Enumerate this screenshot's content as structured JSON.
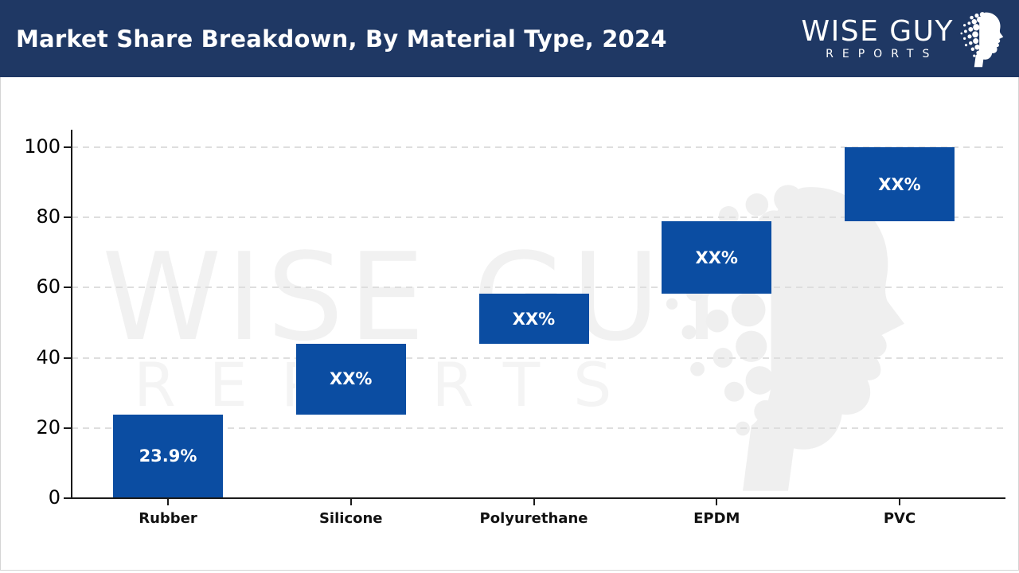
{
  "header": {
    "title": "Market Share Breakdown, By Material Type, 2024",
    "background_color": "#1f3864",
    "logo": {
      "wordmark": "WISE GUY",
      "subtext": "REPORTS"
    }
  },
  "watermark": {
    "line1": "WISE GUY",
    "line2": "REPORTS"
  },
  "chart_data": {
    "type": "bar",
    "subtype": "waterfall-floating-bars",
    "title": "Market Share Breakdown, By Material Type, 2024",
    "categories": [
      "Rubber",
      "Silicone",
      "Polyurethane",
      "EPDM",
      "PVC"
    ],
    "segments": [
      {
        "category": "Rubber",
        "start": 0,
        "end": 23.9,
        "label": "23.9%"
      },
      {
        "category": "Silicone",
        "start": 23.9,
        "end": 43.9,
        "label": "XX%"
      },
      {
        "category": "Polyurethane",
        "start": 43.9,
        "end": 58.2,
        "label": "XX%"
      },
      {
        "category": "EPDM",
        "start": 58.2,
        "end": 78.9,
        "label": "XX%"
      },
      {
        "category": "PVC",
        "start": 78.9,
        "end": 100,
        "label": "XX%"
      }
    ],
    "yticks": [
      0,
      20,
      40,
      60,
      80,
      100
    ],
    "ylim": [
      0,
      100
    ],
    "xlabel": "",
    "ylabel": "",
    "grid": "horizontal-dashed",
    "legend_position": "none",
    "bar_color": "#0b4da2",
    "bar_label_color": "#ffffff",
    "axis_color": "#1a1a1a"
  }
}
